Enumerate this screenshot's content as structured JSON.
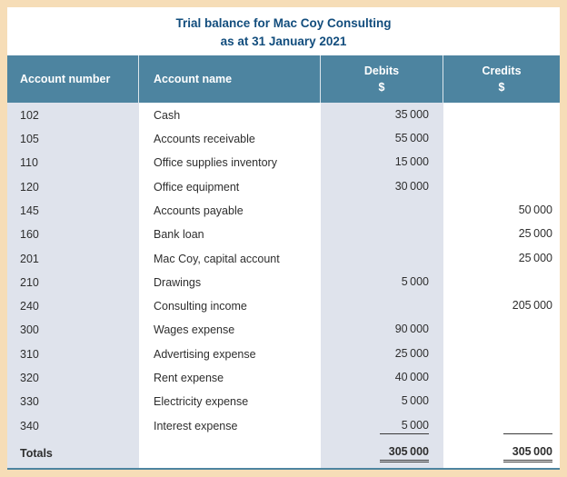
{
  "title": {
    "line1": "Trial balance for Mac Coy Consulting",
    "line2": "as at 31 January 2021"
  },
  "table": {
    "headers": {
      "account_number": "Account number",
      "account_name": "Account name",
      "debits": "Debits",
      "credits": "Credits",
      "currency_symbol": "$"
    },
    "rows": [
      {
        "number": "102",
        "name": "Cash",
        "debit": "35 000",
        "credit": ""
      },
      {
        "number": "105",
        "name": "Accounts receivable",
        "debit": "55 000",
        "credit": ""
      },
      {
        "number": "110",
        "name": "Office supplies inventory",
        "debit": "15 000",
        "credit": ""
      },
      {
        "number": "120",
        "name": "Office equipment",
        "debit": "30 000",
        "credit": ""
      },
      {
        "number": "145",
        "name": "Accounts payable",
        "debit": "",
        "credit": "50 000"
      },
      {
        "number": "160",
        "name": "Bank loan",
        "debit": "",
        "credit": "25 000"
      },
      {
        "number": "201",
        "name": "Mac Coy, capital account",
        "debit": "",
        "credit": "25 000"
      },
      {
        "number": "210",
        "name": "Drawings",
        "debit": "5 000",
        "credit": ""
      },
      {
        "number": "240",
        "name": "Consulting income",
        "debit": "",
        "credit": "205 000"
      },
      {
        "number": "300",
        "name": "Wages expense",
        "debit": "90 000",
        "credit": ""
      },
      {
        "number": "310",
        "name": "Advertising expense",
        "debit": "25 000",
        "credit": ""
      },
      {
        "number": "320",
        "name": "Rent expense",
        "debit": "40 000",
        "credit": ""
      },
      {
        "number": "330",
        "name": "Electricity expense",
        "debit": "5 000",
        "credit": ""
      },
      {
        "number": "340",
        "name": "Interest expense",
        "debit": "5 000",
        "credit": "",
        "rule": true
      }
    ],
    "totals": {
      "label": "Totals",
      "debit": "305 000",
      "credit": "305 000"
    }
  },
  "colors": {
    "frame": "#f6ddb7",
    "header_bg": "#4d84a0",
    "shaded_column": "#dfe3ec",
    "title_text": "#124d7d"
  }
}
